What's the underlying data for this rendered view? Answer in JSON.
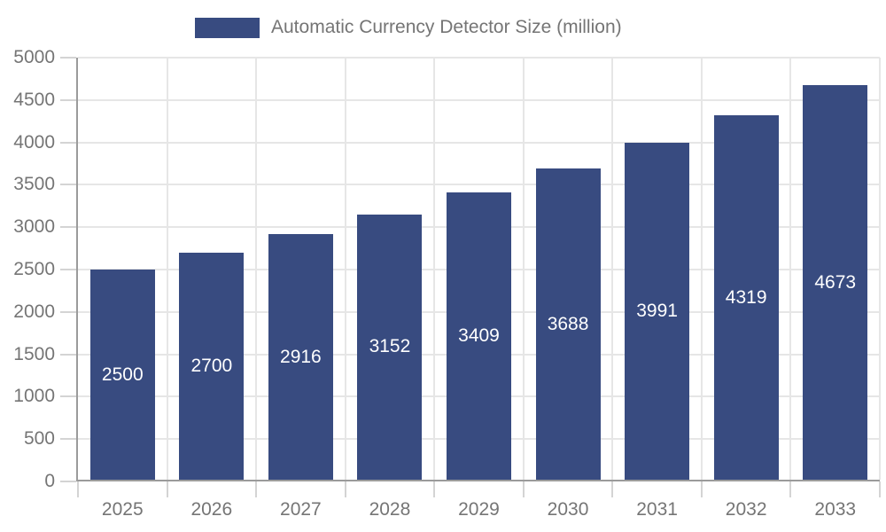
{
  "legend": {
    "label": "Automatic Currency Detector Size (million)"
  },
  "chart_data": {
    "type": "bar",
    "title": "Automatic Currency Detector Size (million)",
    "series_name": "Automatic Currency Detector Size (million)",
    "categories": [
      "2025",
      "2026",
      "2027",
      "2028",
      "2029",
      "2030",
      "2031",
      "2032",
      "2033"
    ],
    "values": [
      2500,
      2700,
      2916,
      3152,
      3409,
      3688,
      3991,
      4319,
      4673
    ],
    "xlabel": "",
    "ylabel": "",
    "ylim": [
      0,
      5000
    ],
    "ytick_step": 500,
    "ytick_labels": [
      "0",
      "500",
      "1000",
      "1500",
      "2000",
      "2500",
      "3000",
      "3500",
      "4000",
      "4500",
      "5000"
    ],
    "grid": true,
    "legend_position": "top",
    "value_label_position": "inside-center",
    "colors": {
      "bar": "#384B80",
      "grid": "#e6e6e6",
      "axis": "#9b9b9b",
      "tick": "#d4d4d4",
      "tick_label": "#757575",
      "value_label": "#ffffff",
      "background": "#ffffff"
    }
  }
}
